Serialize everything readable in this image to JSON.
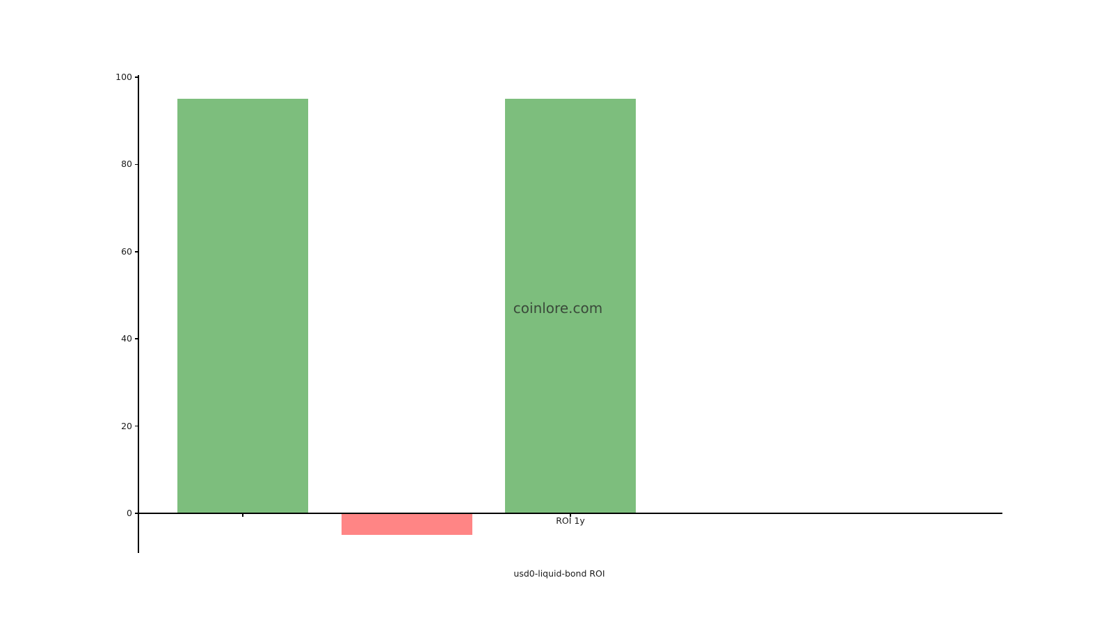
{
  "page": {
    "background_color": "#ffffff"
  },
  "chart_data": {
    "type": "bar",
    "title": "usd0-liquid-bond ROI",
    "watermark": "coinlore.com",
    "categories": [
      "",
      "",
      "ROI 1y"
    ],
    "values": [
      95,
      -5,
      95
    ],
    "bar_colors": [
      "#7dbe7d",
      "#ff8585",
      "#7dbe7d"
    ],
    "positive_color": "#7dbe7d",
    "negative_color": "#ff8585",
    "xlabel": "",
    "ylabel": "",
    "yticks": [
      0,
      20,
      40,
      60,
      80,
      100
    ],
    "ylim": [
      -9,
      100.5
    ],
    "grid": false,
    "legend_position": "none",
    "axis_color": "#000000",
    "text_color": "#1a1a1a"
  }
}
